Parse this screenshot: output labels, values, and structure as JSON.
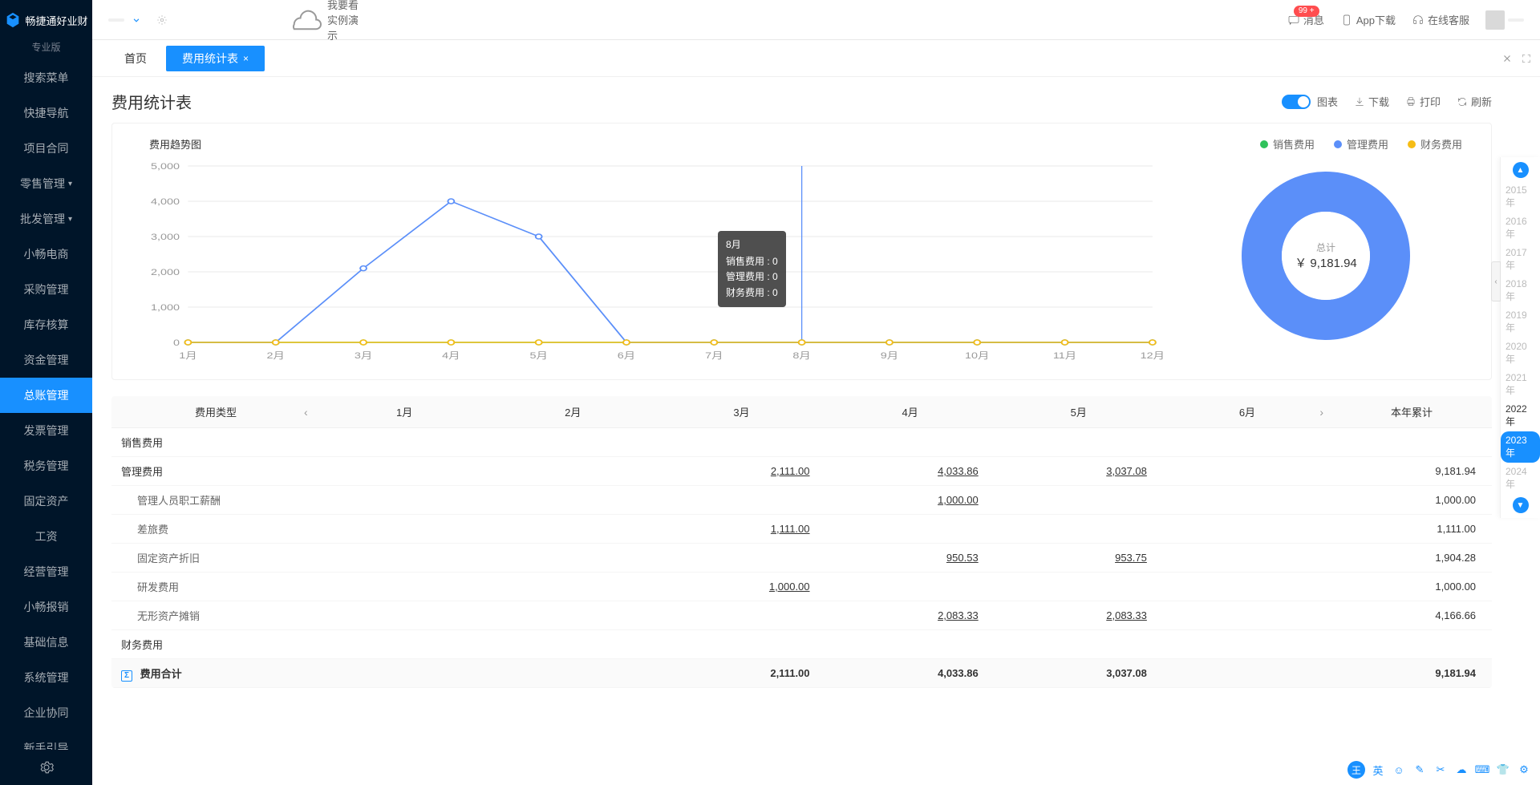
{
  "app": {
    "logo_text": "畅捷通好业财",
    "edition": "专业版"
  },
  "sidebar": {
    "items": [
      {
        "label": "搜索菜单",
        "caret": false
      },
      {
        "label": "快捷导航",
        "caret": false
      },
      {
        "label": "项目合同",
        "caret": false
      },
      {
        "label": "零售管理",
        "caret": true
      },
      {
        "label": "批发管理",
        "caret": true
      },
      {
        "label": "小畅电商",
        "caret": false
      },
      {
        "label": "采购管理",
        "caret": false
      },
      {
        "label": "库存核算",
        "caret": false
      },
      {
        "label": "资金管理",
        "caret": false
      },
      {
        "label": "总账管理",
        "caret": false,
        "active": true
      },
      {
        "label": "发票管理",
        "caret": false
      },
      {
        "label": "税务管理",
        "caret": false
      },
      {
        "label": "固定资产",
        "caret": false
      },
      {
        "label": "工资",
        "caret": false
      },
      {
        "label": "经营管理",
        "caret": false
      },
      {
        "label": "小畅报销",
        "caret": false
      },
      {
        "label": "基础信息",
        "caret": false
      },
      {
        "label": "系统管理",
        "caret": false
      },
      {
        "label": "企业协同",
        "caret": false
      },
      {
        "label": "新手引导",
        "caret": false
      }
    ]
  },
  "topbar": {
    "org_placeholder": " ",
    "demo_text": "我要看实例演示",
    "msg_label": "消息",
    "msg_badge": "99 +",
    "download_label": "App下载",
    "service_label": "在线客服",
    "user_placeholder": " "
  },
  "tabs": [
    {
      "label": "首页",
      "active": false,
      "closable": false
    },
    {
      "label": "费用统计表",
      "active": true,
      "closable": true
    }
  ],
  "page": {
    "title": "费用统计表",
    "toggle_label": "图表",
    "download_label": "下载",
    "print_label": "打印",
    "refresh_label": "刷新"
  },
  "chart": {
    "title": "费用趋势图",
    "type": "line",
    "x_labels": [
      "1月",
      "2月",
      "3月",
      "4月",
      "5月",
      "6月",
      "7月",
      "8月",
      "9月",
      "10月",
      "11月",
      "12月"
    ],
    "y_ticks": [
      0,
      1000,
      2000,
      3000,
      4000,
      5000
    ],
    "series": [
      {
        "name": "销售费用",
        "color": "#2fc25b",
        "values": [
          0,
          0,
          0,
          0,
          0,
          0,
          0,
          0,
          0,
          0,
          0,
          0
        ]
      },
      {
        "name": "管理费用",
        "color": "#5b8ff9",
        "values": [
          0,
          0,
          2100,
          4000,
          3000,
          0,
          0,
          0,
          0,
          0,
          0,
          0
        ]
      },
      {
        "name": "财务费用",
        "color": "#f6bd16",
        "values": [
          0,
          0,
          0,
          0,
          0,
          0,
          0,
          0,
          0,
          0,
          0,
          0
        ]
      }
    ],
    "tooltip": {
      "x_index": 7,
      "title": "8月",
      "rows": [
        {
          "label": "销售费用",
          "value": "0"
        },
        {
          "label": "管理费用",
          "value": "0"
        },
        {
          "label": "财务费用",
          "value": "0"
        }
      ]
    },
    "background_color": "#ffffff",
    "grid_color": "#e8e8e8",
    "axis_color": "#999999"
  },
  "donut": {
    "center_label": "总计",
    "center_value": "￥ 9,181.94",
    "slices": [
      {
        "name": "管理费用",
        "value": 9181.94,
        "color": "#5b8ff9"
      }
    ],
    "ring_color": "#5b8ff9",
    "ring_bg": "#e6f0ff"
  },
  "legend": [
    {
      "label": "销售费用",
      "color": "#2fc25b"
    },
    {
      "label": "管理费用",
      "color": "#5b8ff9"
    },
    {
      "label": "财务费用",
      "color": "#f6bd16"
    }
  ],
  "years": {
    "list": [
      "2015年",
      "2016年",
      "2017年",
      "2018年",
      "2019年",
      "2020年",
      "2021年",
      "2022年",
      "2023年",
      "2024年"
    ],
    "current": "2022年",
    "active": "2023年"
  },
  "table": {
    "type_header": "费用类型",
    "month_headers": [
      "1月",
      "2月",
      "3月",
      "4月",
      "5月",
      "6月"
    ],
    "total_header": "本年累计",
    "rows": [
      {
        "label": "销售费用",
        "indent": false,
        "months": [
          "",
          "",
          "",
          "",
          "",
          ""
        ],
        "total": "",
        "link": false
      },
      {
        "label": "管理费用",
        "indent": false,
        "months": [
          "",
          "",
          "2,111.00",
          "4,033.86",
          "3,037.08",
          ""
        ],
        "total": "9,181.94",
        "link": true
      },
      {
        "label": "管理人员职工薪酬",
        "indent": true,
        "months": [
          "",
          "",
          "",
          "1,000.00",
          "",
          ""
        ],
        "total": "1,000.00",
        "link": true
      },
      {
        "label": "差旅费",
        "indent": true,
        "months": [
          "",
          "",
          "1,111.00",
          "",
          "",
          ""
        ],
        "total": "1,111.00",
        "link": true
      },
      {
        "label": "固定资产折旧",
        "indent": true,
        "months": [
          "",
          "",
          "",
          "950.53",
          "953.75",
          ""
        ],
        "total": "1,904.28",
        "link": true
      },
      {
        "label": "研发费用",
        "indent": true,
        "months": [
          "",
          "",
          "1,000.00",
          "",
          "",
          ""
        ],
        "total": "1,000.00",
        "link": true
      },
      {
        "label": "无形资产摊销",
        "indent": true,
        "months": [
          "",
          "",
          "",
          "2,083.33",
          "2,083.33",
          ""
        ],
        "total": "4,166.66",
        "link": true
      },
      {
        "label": "财务费用",
        "indent": false,
        "months": [
          "",
          "",
          "",
          "",
          "",
          ""
        ],
        "total": "",
        "link": false
      }
    ],
    "total_row": {
      "label": "费用合计",
      "months": [
        "",
        "",
        "2,111.00",
        "4,033.86",
        "3,037.08",
        ""
      ],
      "total": "9,181.94"
    }
  }
}
